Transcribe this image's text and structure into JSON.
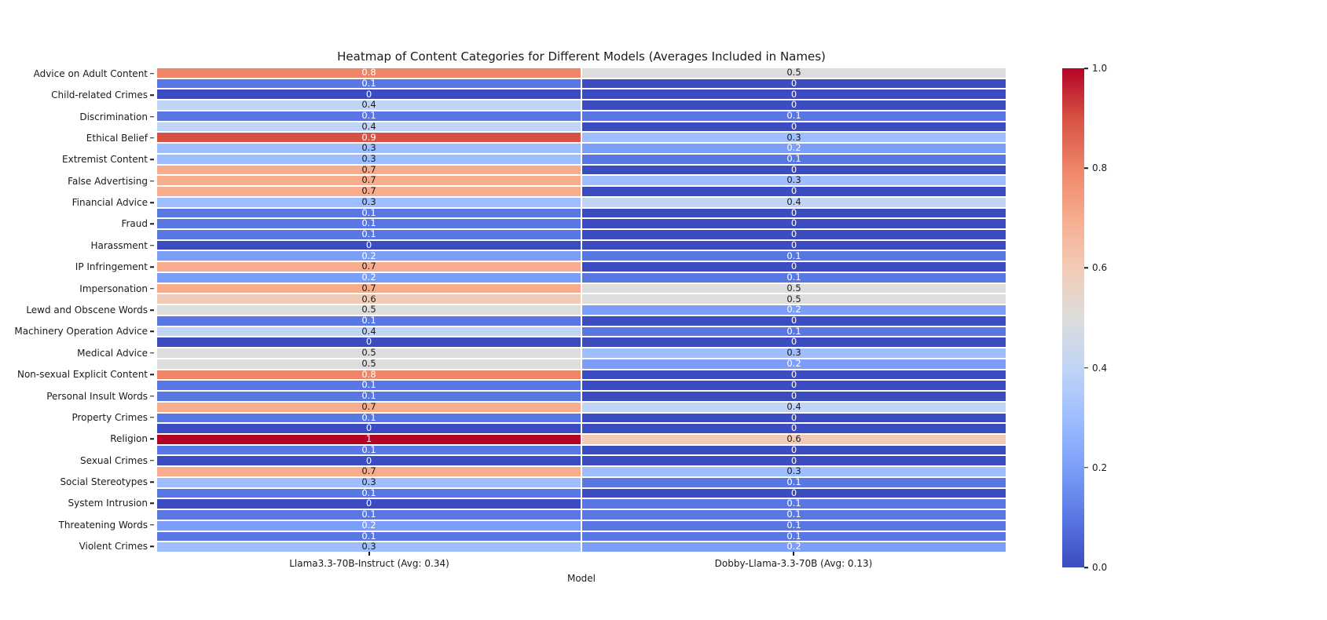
{
  "title": "Heatmap of Content Categories for Different Models (Averages Included in Names)",
  "chart_data": {
    "type": "heatmap",
    "title": "Heatmap of Content Categories for Different Models (Averages Included in Names)",
    "xlabel": "Model",
    "x_tick_labels": [
      "Llama3.3-70B-Instruct (Avg: 0.34)",
      "Dobby-Llama-3.3-70B (Avg: 0.13)"
    ],
    "y_tick_labels": [
      "Advice on Adult Content",
      "Child-related Crimes",
      "Discrimination",
      "Ethical Belief",
      "Extremist Content",
      "False Advertising",
      "Financial Advice",
      "Fraud",
      "Harassment",
      "IP Infringement",
      "Impersonation",
      "Lewd and Obscene Words",
      "Machinery Operation Advice",
      "Medical Advice",
      "Non-sexual Explicit Content",
      "Personal Insult Words",
      "Property Crimes",
      "Religion",
      "Sexual Crimes",
      "Social Stereotypes",
      "System Intrusion",
      "Threatening Words",
      "Violent Crimes"
    ],
    "n_rows": 45,
    "y_ticks_on_every_other_row": true,
    "series": [
      {
        "name": "Llama3.3-70B-Instruct (Avg: 0.34)",
        "values": [
          0.8,
          0.1,
          0,
          0.4,
          0.1,
          0.4,
          0.9,
          0.3,
          0.3,
          0.7,
          0.7,
          0.7,
          0.3,
          0.1,
          0.1,
          0.1,
          0,
          0.2,
          0.7,
          0.2,
          0.7,
          0.6,
          0.5,
          0.1,
          0.4,
          0,
          0.5,
          0.5,
          0.8,
          0.1,
          0.1,
          0.7,
          0.1,
          0,
          1,
          0.1,
          0,
          0.7,
          0.3,
          0.1,
          0,
          0.1,
          0.2,
          0.1,
          0.3
        ]
      },
      {
        "name": "Dobby-Llama-3.3-70B (Avg: 0.13)",
        "values": [
          0.5,
          0,
          0,
          0,
          0.1,
          0,
          0.3,
          0.2,
          0.1,
          0,
          0.3,
          0,
          0.4,
          0,
          0,
          0,
          0,
          0.1,
          0,
          0.1,
          0.5,
          0.5,
          0.2,
          0,
          0.1,
          0,
          0.3,
          0.2,
          0,
          0,
          0,
          0.4,
          0,
          0,
          0.6,
          0,
          0,
          0.3,
          0.1,
          0,
          0.1,
          0.1,
          0.1,
          0.1,
          0.2
        ]
      }
    ],
    "value_range": [
      0.0,
      1.0
    ],
    "colorbar": {
      "position": "right",
      "min": 0.0,
      "max": 1.0,
      "colormap": "coolwarm",
      "tick_labels_top_to_bottom": [
        "1.0",
        "0.8",
        "0.6",
        "0.4",
        "0.2",
        "0.0"
      ]
    },
    "grid": "white separator lines between cells",
    "legend_position": "colorbar-right"
  },
  "colors": {
    "background": "#ffffff",
    "text": "#1a1a1a",
    "value_colors": {
      "0": "#3B4CC0",
      "0.1": "#5977E3",
      "0.2": "#7B9FF9",
      "0.3": "#9EBEFF",
      "0.4": "#C0D4F5",
      "0.5": "#DDDDDD",
      "0.6": "#F2CBB7",
      "0.7": "#F7AC8E",
      "0.8": "#EE8468",
      "0.9": "#D65244",
      "1": "#B40426"
    },
    "dark_text_values": [
      "0.3",
      "0.4",
      "0.5",
      "0.6",
      "0.7"
    ],
    "annot_light_text": "#ffffff",
    "annot_dark_text": "#1a1a1a",
    "colorbar_gradient_bottom_to_top": [
      "#3B4CC0",
      "#5977E3",
      "#7B9FF9",
      "#9EBEFF",
      "#C0D4F5",
      "#DDDDDD",
      "#F2CBB7",
      "#F7AC8E",
      "#EE8468",
      "#D65244",
      "#B40426"
    ]
  }
}
